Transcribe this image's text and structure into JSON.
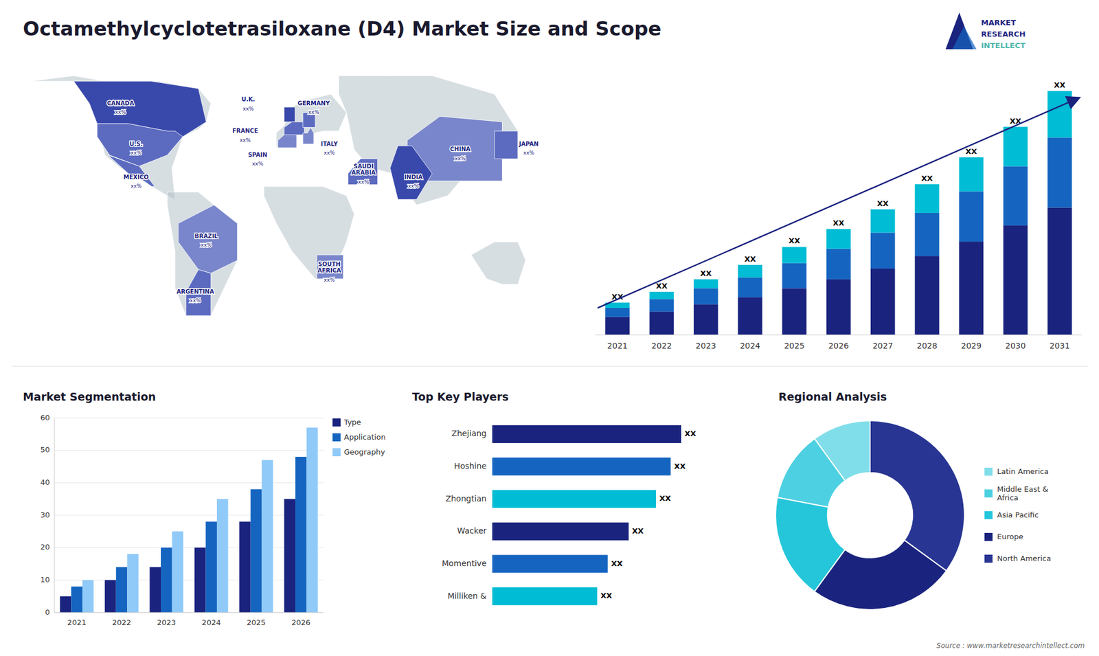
{
  "chart_data": [
    {
      "type": "bar",
      "stacked": true,
      "title": "Octamethylcyclotetrasiloxane (D4) Market Size and Scope",
      "annotations": [
        "MARKET",
        "RESEARCH",
        "INTELLECT",
        "Source : www.marketresearchintellect.com"
      ],
      "categories": [
        "2021",
        "2022",
        "2023",
        "2024",
        "2025",
        "2026",
        "2027",
        "2028",
        "2029",
        "2030",
        "2031"
      ],
      "series": [
        {
          "color": "#1a237e",
          "values": [
            1,
            1.3,
            1.7,
            2.1,
            2.6,
            3.1,
            3.7,
            4.4,
            5.2,
            6.1,
            7.1
          ]
        },
        {
          "color": "#1565c0",
          "values": [
            0.5,
            0.7,
            0.9,
            1.1,
            1.4,
            1.7,
            2.0,
            2.4,
            2.8,
            3.3,
            3.9
          ]
        },
        {
          "color": "#00bcd4",
          "values": [
            0.3,
            0.4,
            0.5,
            0.7,
            0.9,
            1.1,
            1.3,
            1.6,
            1.9,
            2.2,
            2.6
          ],
          "value_labels": [
            "XX",
            "XX",
            "XX",
            "XX",
            "XX",
            "XX",
            "XX",
            "XX",
            "XX",
            "XX",
            "XX"
          ]
        }
      ],
      "ylim": [
        0,
        15
      ],
      "tick_labels": "x"
    },
    {
      "type": "map",
      "categories": [
        "CANADA",
        "U.S.",
        "MEXICO",
        "BRAZIL",
        "ARGENTINA",
        "U.K.",
        "FRANCE",
        "SPAIN",
        "GERMANY",
        "ITALY",
        "SAUDI\nARABIA",
        "SOUTH\nAFRICA",
        "CHINA",
        "INDIA",
        "JAPAN"
      ],
      "value_labels": [
        "xx%",
        "xx%",
        "xx%",
        "xx%",
        "xx%",
        "xx%",
        "xx%",
        "xx%",
        "xx%",
        "xx%",
        "xx%",
        "xx%",
        "xx%",
        "xx%",
        "xx%"
      ]
    },
    {
      "type": "bar",
      "title": "Market Segmentation",
      "categories": [
        "2021",
        "2022",
        "2023",
        "2024",
        "2025",
        "2026"
      ],
      "series": [
        {
          "name": "Type",
          "color": "#1a237e",
          "values": [
            5,
            10,
            14,
            20,
            28,
            35
          ]
        },
        {
          "name": "Application",
          "color": "#1565c0",
          "values": [
            8,
            14,
            20,
            28,
            38,
            48
          ]
        },
        {
          "name": "Geography",
          "color": "#90caf9",
          "values": [
            10,
            18,
            25,
            35,
            47,
            57
          ]
        }
      ],
      "ylim": [
        0,
        60
      ],
      "yticks": [
        0,
        10,
        20,
        30,
        40,
        50,
        60
      ],
      "grid": true,
      "legend": "right"
    },
    {
      "type": "bar",
      "orientation": "horizontal",
      "title": "Top Key Players",
      "categories": [
        "Zhejiang",
        "Hoshine",
        "Zhongtian",
        "Wacker",
        "Momentive",
        "Milliken &"
      ],
      "values": [
        9,
        8.5,
        7.8,
        6.5,
        5.5,
        5.0
      ],
      "value_labels": [
        "XX",
        "XX",
        "XX",
        "XX",
        "XX",
        "XX"
      ],
      "colors": [
        "#1a237e",
        "#1565c0",
        "#00bcd4",
        "#1a237e",
        "#1565c0",
        "#00bcd4"
      ],
      "xlim": [
        0,
        12
      ],
      "tick_labels": "y"
    },
    {
      "type": "pie",
      "title": "Regional Analysis",
      "categories": [
        "Latin America",
        "Middle East &\nAfrica",
        "Asia Pacific",
        "Europe",
        "North America"
      ],
      "values": [
        10,
        12,
        18,
        25,
        35
      ],
      "colors": [
        "#80deea",
        "#4dd0e1",
        "#26c6da",
        "#1a237e",
        "#283593"
      ],
      "legend": "right"
    }
  ]
}
